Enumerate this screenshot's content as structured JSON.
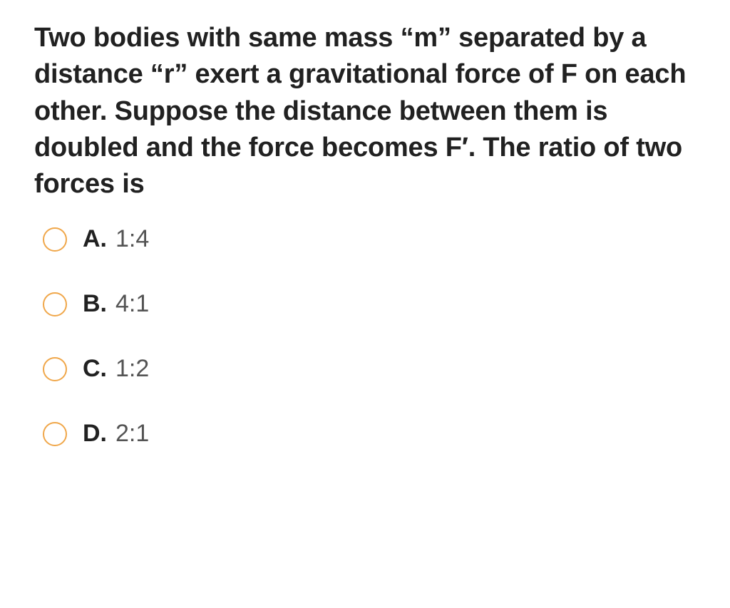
{
  "question": "Two bodies with same mass “m” separated by a distance “r” exert a gravitational force of F on each other. Suppose the distance between them is doubled and the force becomes F′. The ratio of two forces is",
  "question_color": "#212121",
  "question_fontsize": 38,
  "question_fontweight": 700,
  "options": [
    {
      "label": "A.",
      "text": "1:4"
    },
    {
      "label": "B.",
      "text": "4:1"
    },
    {
      "label": "C.",
      "text": "1:2"
    },
    {
      "label": "D.",
      "text": "2:1"
    }
  ],
  "option_label_color": "#212121",
  "option_text_color": "#545454",
  "option_fontsize": 34,
  "radio_border_color": "#f0a74a",
  "radio_border_width": 2.5,
  "radio_size": 34,
  "background_color": "#ffffff"
}
